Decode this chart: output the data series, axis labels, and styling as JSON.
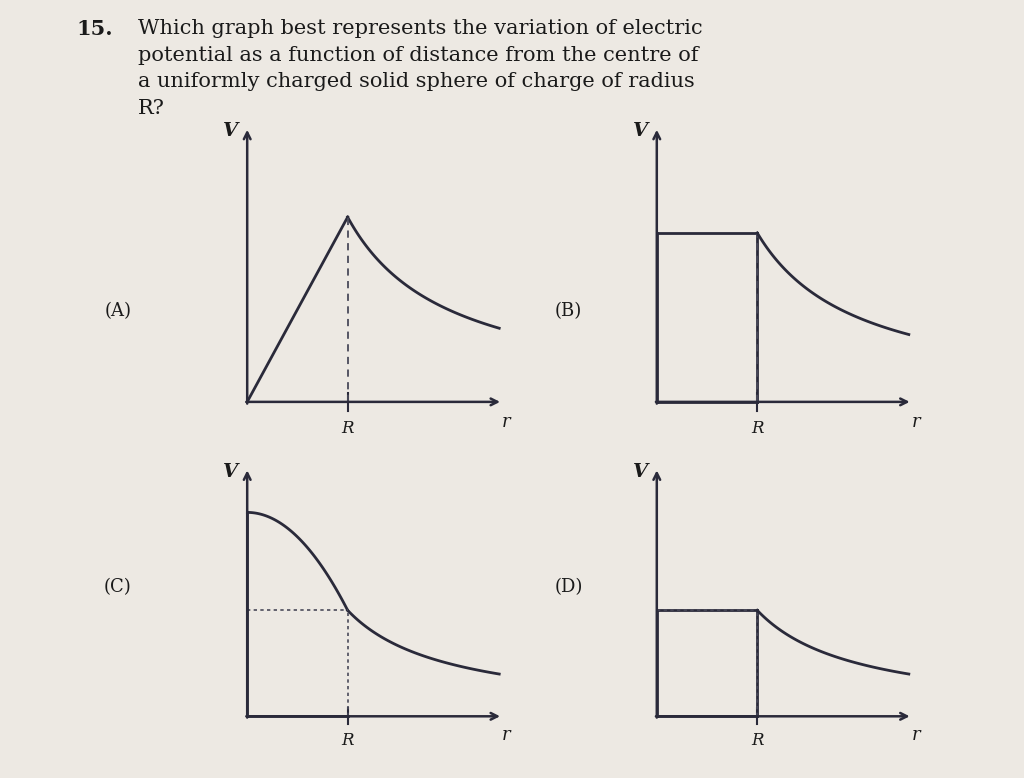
{
  "background_color": "#ede9e3",
  "line_color": "#2a2a3a",
  "dashed_color": "#4a4a5a",
  "text_color": "#1a1a1a",
  "question_number": "15.",
  "question_body": "Which graph best represents the variation of electric\npotential as a function of distance from the centre of\na uniformly charged solid sphere of charge of radius\nR?",
  "question_fontsize": 15,
  "label_fontsize": 13,
  "axis_fontsize": 12,
  "graph_labels": [
    "(A)",
    "(B)",
    "(C)",
    "(D)"
  ]
}
